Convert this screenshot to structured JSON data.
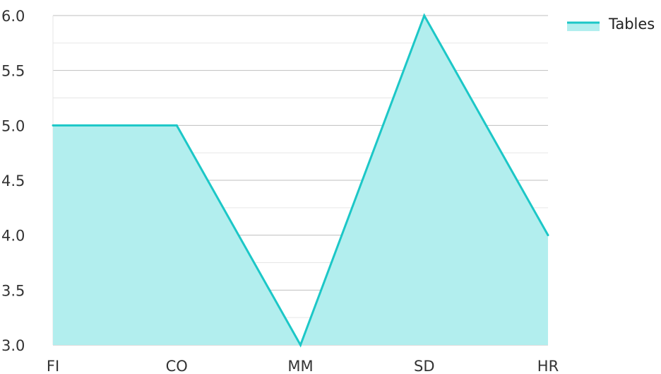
{
  "chart_data": {
    "type": "area",
    "categories": [
      "FI",
      "CO",
      "MM",
      "SD",
      "HR"
    ],
    "series": [
      {
        "name": "Tables",
        "values": [
          5.0,
          5.0,
          3.0,
          6.0,
          4.0
        ]
      }
    ],
    "title": "",
    "xlabel": "",
    "ylabel": "",
    "ylim": [
      3.0,
      6.0
    ],
    "y_ticks": [
      "3.0",
      "3.5",
      "4.0",
      "4.5",
      "5.0",
      "5.5",
      "6.0"
    ],
    "y_minor_grid": [
      3.25,
      3.75,
      4.25,
      4.75,
      5.25,
      5.75
    ],
    "grid": true,
    "legend_position": "top-right",
    "colors": {
      "line": "#1cc7c7",
      "fill": "#b2eeee",
      "major_grid": "#bfbfbf",
      "minor_grid": "#e6e6e6"
    }
  }
}
